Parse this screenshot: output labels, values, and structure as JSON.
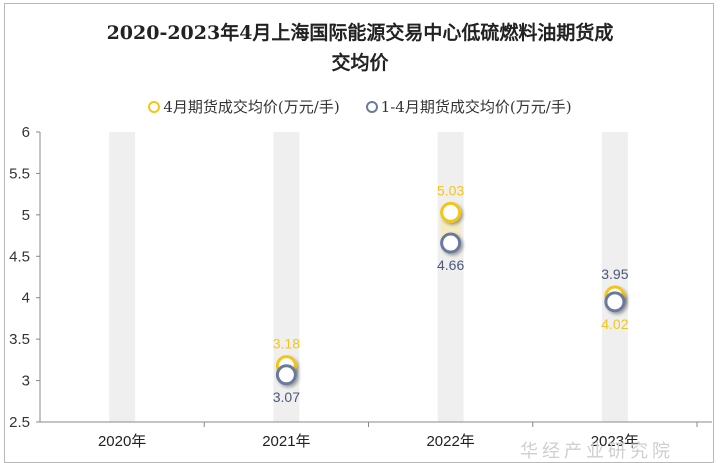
{
  "title_line1": "2020-2023年4月上海国际能源交易中心低硫燃料油期货成",
  "title_line2": "交均价",
  "legend": [
    {
      "label": "4月期货成交均价(万元/手)",
      "color": "#f5c518"
    },
    {
      "label": "1-4月期货成交均价(万元/手)",
      "color": "#6b7a9e"
    }
  ],
  "y_ticks": [
    "6",
    "5.5",
    "5",
    "4.5",
    "4",
    "3.5",
    "3",
    "2.5"
  ],
  "x_labels": [
    "2020年",
    "2021年",
    "2022年",
    "2023年"
  ],
  "watermark": "华经产业研究院",
  "chart_data": {
    "type": "scatter",
    "title": "2020-2023年4月上海国际能源交易中心低硫燃料油期货成交均价",
    "categories": [
      "2020年",
      "2021年",
      "2022年",
      "2023年"
    ],
    "series": [
      {
        "name": "4月期货成交均价(万元/手)",
        "color": "#f5c518",
        "values": [
          null,
          3.18,
          5.03,
          4.02
        ]
      },
      {
        "name": "1-4月期货成交均价(万元/手)",
        "color": "#6b7a9e",
        "values": [
          null,
          3.07,
          4.66,
          3.95
        ]
      }
    ],
    "xlabel": "",
    "ylabel": "",
    "ylim": [
      2.5,
      6
    ],
    "y_tick_step": 0.5,
    "grid": false,
    "legend_position": "top",
    "category_bands": true
  }
}
